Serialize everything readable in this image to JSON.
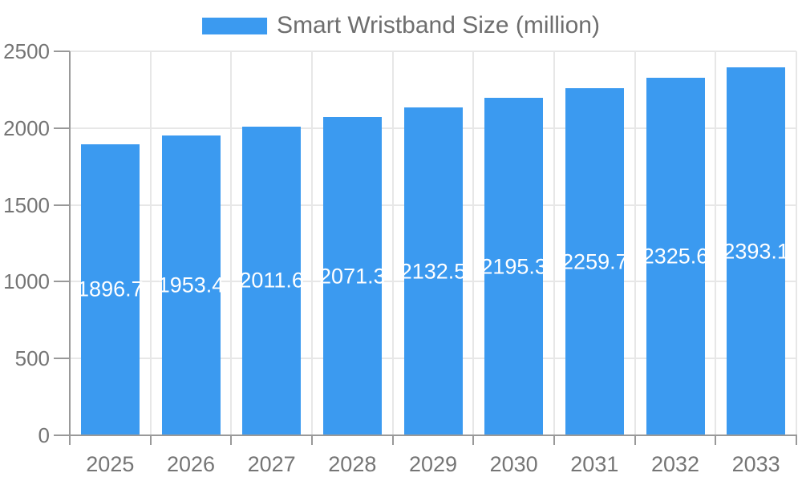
{
  "legend": {
    "label": "Smart Wristband Size (million)",
    "swatch_color": "#3b9af0"
  },
  "chart_data": {
    "type": "bar",
    "title": "Smart Wristband Size (million)",
    "categories": [
      "2025",
      "2026",
      "2027",
      "2028",
      "2029",
      "2030",
      "2031",
      "2032",
      "2033"
    ],
    "values": [
      1896.7,
      1953.4,
      2011.6,
      2071.3,
      2132.5,
      2195.3,
      2259.7,
      2325.6,
      2393.1
    ],
    "value_label_decimals": 1,
    "xlabel": "",
    "ylabel": "",
    "ylim": [
      0,
      2500
    ],
    "yticks": [
      0,
      500,
      1000,
      1500,
      2000,
      2500
    ],
    "grid": true,
    "legend_position": "top-center",
    "value_labels": "inside-center"
  },
  "colors": {
    "bar": "#3b9af0",
    "bar_value_label": "#ffffff",
    "gridline": "#e7e7e7",
    "axis": "#999999",
    "tick_label": "#757575",
    "legend_text": "#6e6e6e",
    "background": "#ffffff"
  }
}
